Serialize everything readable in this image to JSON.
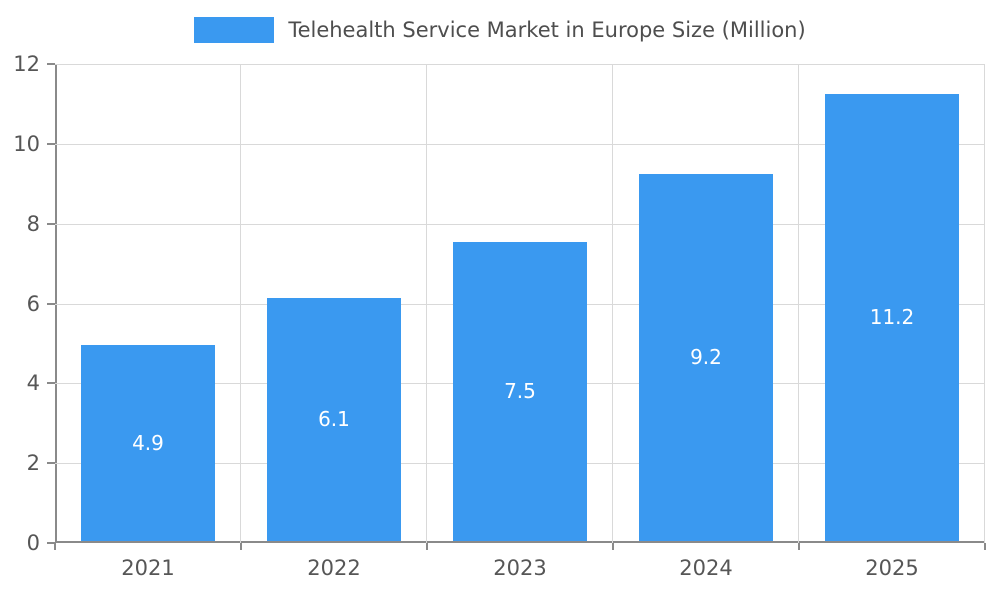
{
  "chart_data": {
    "type": "bar",
    "title": "Telehealth Service Market in Europe Size (Million)",
    "categories": [
      "2021",
      "2022",
      "2023",
      "2024",
      "2025"
    ],
    "values": [
      4.9,
      6.1,
      7.5,
      9.2,
      11.2
    ],
    "xlabel": "",
    "ylabel": "",
    "ylim": [
      0,
      12
    ],
    "yticks": [
      0,
      2,
      4,
      6,
      8,
      10,
      12
    ],
    "grid": true,
    "legend_position": "top-center",
    "bar_color": "#3a99f0",
    "value_label_color": "#ffffff",
    "grid_color": "#d9d9d9",
    "axis_color": "#8a8a8a",
    "text_color": "#565656"
  }
}
